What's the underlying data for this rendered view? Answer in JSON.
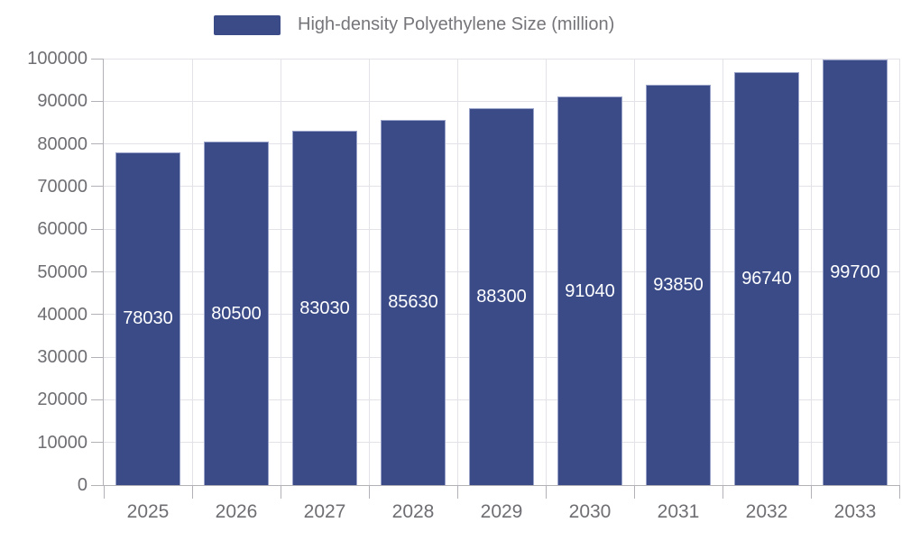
{
  "legend": {
    "label": "High-density Polyethylene Size (million)"
  },
  "colors": {
    "background": "#FFFFFF",
    "bar_fill": "#3A4B87",
    "bar_border": "#99A3CA",
    "grid_line": "#E2E2E8",
    "axis_line": "#B1B1B7",
    "axis_text": "#6E6E73",
    "legend_text": "#75757A",
    "bar_label_text": "#FFFFFF"
  },
  "chart_data": {
    "type": "bar",
    "title": "High-density Polyethylene Size (million)",
    "categories": [
      "2025",
      "2026",
      "2027",
      "2028",
      "2029",
      "2030",
      "2031",
      "2032",
      "2033"
    ],
    "values": [
      78030,
      80500,
      83030,
      85630,
      88300,
      91040,
      93850,
      96740,
      99700
    ],
    "bar_value_labels": [
      "78030",
      "80500",
      "83030",
      "85630",
      "88300",
      "91040",
      "93850",
      "96740",
      "99700"
    ],
    "series": [
      {
        "name": "High-density Polyethylene Size (million)",
        "values": [
          78030,
          80500,
          83030,
          85630,
          88300,
          91040,
          93850,
          96740,
          99700
        ]
      }
    ],
    "xlabel": "",
    "ylabel": "",
    "ylim": [
      0,
      100000
    ],
    "ytick_interval": 10000,
    "ytick_labels": [
      "0",
      "10000",
      "20000",
      "30000",
      "40000",
      "50000",
      "60000",
      "70000",
      "80000",
      "90000",
      "100000"
    ],
    "grid": true,
    "legend_position": "top-center"
  }
}
